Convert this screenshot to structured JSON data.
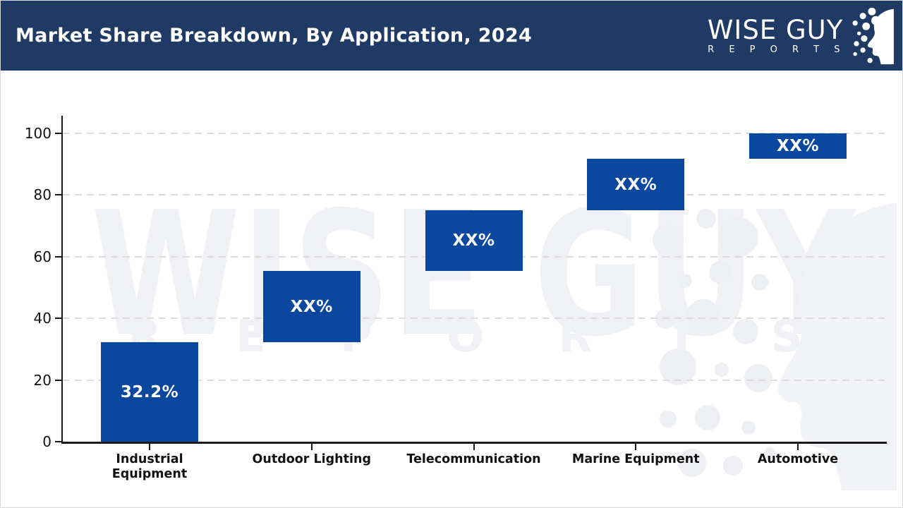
{
  "header": {
    "title": "Market Share Breakdown, By Application, 2024",
    "bg_color": "#203a66",
    "logo": {
      "line1": "WISE GUY",
      "line2": "REPORTS"
    }
  },
  "watermark": {
    "line1": "WISE GUY",
    "line2": "REPORTS"
  },
  "chart_data": {
    "type": "bar",
    "subtype": "waterfall",
    "title": "Market Share Breakdown, By Application, 2024",
    "categories": [
      "Industrial Equipment",
      "Outdoor Lighting",
      "Telecommunication",
      "Marine Equipment",
      "Automotive"
    ],
    "tick_labels": [
      "Industrial\nEquipment",
      "Outdoor Lighting",
      "Telecommunication",
      "Marine Equipment",
      "Automotive"
    ],
    "segments": [
      {
        "category": "Industrial Equipment",
        "start": 0,
        "end": 32.2,
        "label": "32.2%"
      },
      {
        "category": "Outdoor Lighting",
        "start": 32.2,
        "end": 55.3,
        "label": "XX%"
      },
      {
        "category": "Telecommunication",
        "start": 55.3,
        "end": 74.9,
        "label": "XX%"
      },
      {
        "category": "Marine Equipment",
        "start": 74.9,
        "end": 91.7,
        "label": "XX%"
      },
      {
        "category": "Automotive",
        "start": 91.7,
        "end": 99.9,
        "label": "XX%"
      }
    ],
    "values_masked_as": "XX%",
    "y_ticks": [
      0,
      20,
      40,
      60,
      80,
      100
    ],
    "ylim": [
      0,
      105
    ],
    "grid": "horizontal-dashed",
    "legend": "none",
    "bar_color": "#0a479f",
    "value_label_color": "#ffffff",
    "gridline_color": "#dcdcdc",
    "axis_color": "#1a1a1a"
  }
}
